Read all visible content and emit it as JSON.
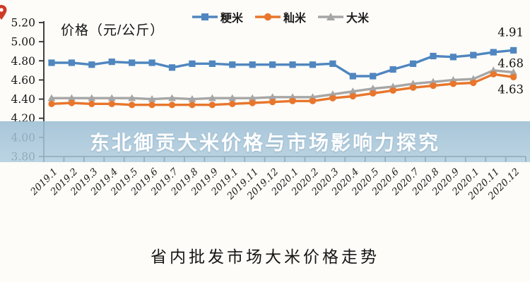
{
  "banner": {
    "text": "东北御贡大米价格与市场影响力探究",
    "bg_color": "#9dbfd5",
    "text_color": "#ffffff"
  },
  "caption": "省内批发市场大米价格走势",
  "icons": {
    "location_pin_color": "#cf3a28"
  },
  "chart_data": {
    "type": "line",
    "title": "价格（元/公斤）",
    "legend_position": "top",
    "grid": false,
    "ylim": [
      3.8,
      5.2
    ],
    "y_ticks": [
      "5.20",
      "5.00",
      "4.80",
      "4.60",
      "4.40",
      "4.20",
      "4.00",
      "3.80"
    ],
    "categories": [
      "2019.1",
      "2019.2",
      "2019.3",
      "2019.4",
      "2019.5",
      "2019.6",
      "2019.7",
      "2019.8",
      "2019.9",
      "2019.1",
      "2019.11",
      "2019.12",
      "2020.1",
      "2020.2",
      "2020.3",
      "2020.4",
      "2020.5",
      "2020.6",
      "2020.7",
      "2020.8",
      "2020.9",
      "2020.1",
      "2020.11",
      "2020.12"
    ],
    "series": [
      {
        "name": "粳米",
        "marker": "square",
        "color": "#4f86c0",
        "end_label": "4.91",
        "values": [
          4.78,
          4.78,
          4.76,
          4.79,
          4.78,
          4.78,
          4.73,
          4.77,
          4.77,
          4.76,
          4.76,
          4.76,
          4.76,
          4.76,
          4.77,
          4.64,
          4.64,
          4.71,
          4.77,
          4.85,
          4.84,
          4.86,
          4.89,
          4.91
        ]
      },
      {
        "name": "籼米",
        "marker": "circle",
        "color": "#e8762c",
        "end_label": "4.63",
        "values": [
          4.35,
          4.36,
          4.35,
          4.35,
          4.34,
          4.34,
          4.34,
          4.34,
          4.34,
          4.35,
          4.36,
          4.37,
          4.38,
          4.38,
          4.41,
          4.43,
          4.46,
          4.49,
          4.52,
          4.54,
          4.56,
          4.57,
          4.66,
          4.63
        ]
      },
      {
        "name": "大米",
        "marker": "triangle",
        "color": "#a6a6a6",
        "end_label": "4.68",
        "values": [
          4.41,
          4.41,
          4.41,
          4.41,
          4.41,
          4.4,
          4.41,
          4.4,
          4.41,
          4.41,
          4.41,
          4.42,
          4.42,
          4.42,
          4.45,
          4.48,
          4.51,
          4.53,
          4.56,
          4.58,
          4.6,
          4.61,
          4.7,
          4.68
        ]
      }
    ]
  }
}
